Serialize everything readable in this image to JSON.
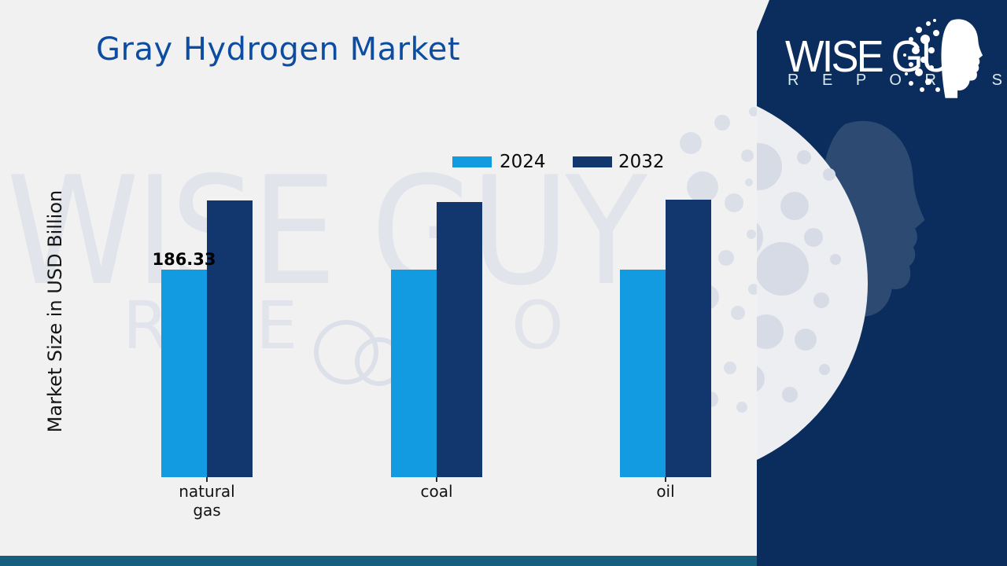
{
  "title": "Gray Hydrogen Market",
  "logo": {
    "line1": "WISE GUY",
    "line2": "R E P O R T S"
  },
  "watermark": {
    "line1": "WISE GUY",
    "line2": "R E P O R T S"
  },
  "colors": {
    "background": "#F1F1F2",
    "title_blue": "#0D4DA1",
    "bar_2024_blue": "#129BE1",
    "bar_2032_navy": "#12376E",
    "panel_navy": "#0A2D5E",
    "bottom_bar_teal": "#175F7E",
    "watermark_gray": "#E1E4EB",
    "face_watermark_blue": "#2D4A73"
  },
  "chart_data": {
    "type": "bar",
    "title": "Gray Hydrogen Market",
    "categories": [
      "natural gas",
      "coal",
      "oil"
    ],
    "series": [
      {
        "name": "2024",
        "color": "#129BE1",
        "values": [
          186.33,
          186.33,
          186.33
        ]
      },
      {
        "name": "2032",
        "color": "#12376E",
        "values": [
          248.5,
          247.0,
          249.2
        ]
      }
    ],
    "ylabel": "Market Size in USD Billion",
    "xlabel": "",
    "ylim": [
      0,
      260
    ],
    "grid": false,
    "axis_lines": false,
    "legend_position": "top-center",
    "data_labels": [
      {
        "series": "2024",
        "category": "natural gas",
        "text": "186.33"
      }
    ]
  }
}
